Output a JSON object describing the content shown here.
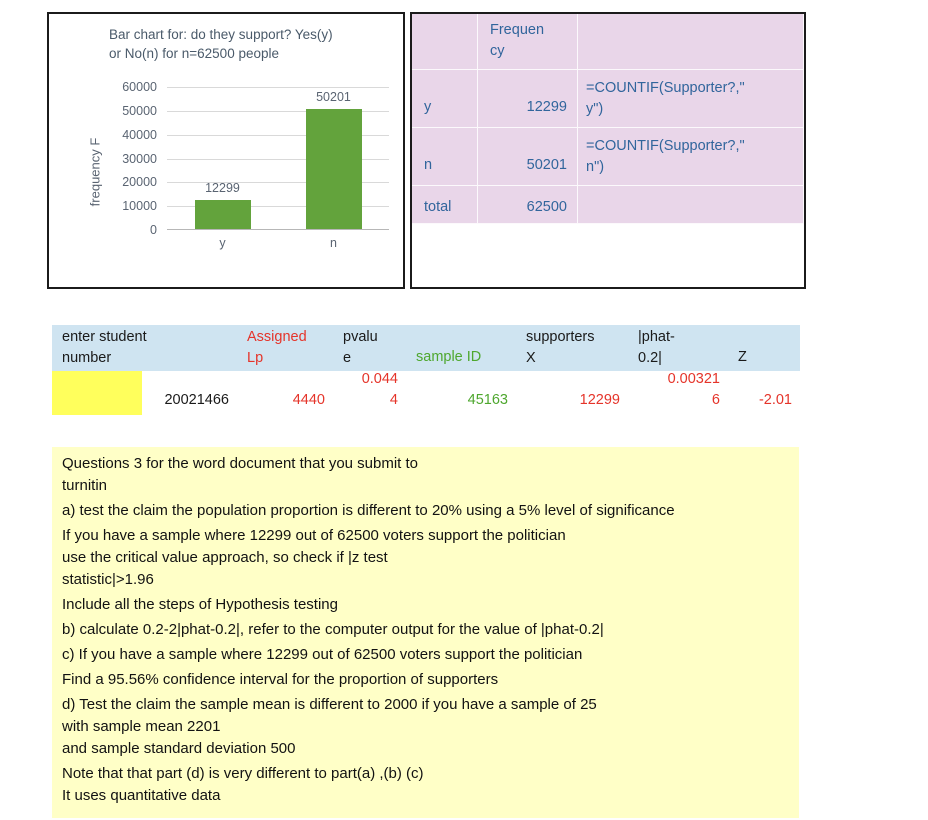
{
  "colors": {
    "bar_green": "#63a33c",
    "pink_table_bg": "#e9d6e9",
    "blue_text": "#31659c",
    "header_blue_bg": "#cfe4f1",
    "input_yellow": "#ffff5c",
    "notes_yellow": "#ffffc7",
    "red_text": "#e5342a",
    "green_text": "#4ea72e"
  },
  "chart_data": {
    "type": "bar",
    "title": "Bar chart for: do they support? Yes(y)\nor No(n) for n=62500  people",
    "categories": [
      "y",
      "n"
    ],
    "values": [
      12299,
      50201
    ],
    "bar_labels": [
      "12299",
      "50201"
    ],
    "xlabel": "",
    "ylabel": "frequency F",
    "ylim": [
      0,
      60000
    ],
    "yticks": [
      0,
      10000,
      20000,
      30000,
      40000,
      50000,
      60000
    ],
    "grid": true,
    "legend": false,
    "bar_color": "#63a33c"
  },
  "freq_table": {
    "header": "Frequen\ncy",
    "rows": [
      {
        "label": "y",
        "value": "12299",
        "formula": "=COUNTIF(Supporter?,\"\ny\")"
      },
      {
        "label": "n",
        "value": "50201",
        "formula": "=COUNTIF(Supporter?,\"\nn\")"
      },
      {
        "label": "total",
        "value": "62500",
        "formula": ""
      }
    ]
  },
  "calc_table": {
    "headers": {
      "student": "enter student\nnumber",
      "assigned_lp": "Assigned\nLp",
      "pvalue": "pvalu\ne",
      "sample_id": "sample ID",
      "supporters": "supporters\nX",
      "phat": "|phat-\n0.2|",
      "z": "Z"
    },
    "row": {
      "student_input": "",
      "student_number": "20021466",
      "assigned_lp": "4440",
      "pvalue": "0.044\n4",
      "sample_id": "45163",
      "supporters": "12299",
      "phat": "0.00321\n6",
      "z": "-2.01"
    }
  },
  "questions": {
    "paragraphs": [
      "Questions 3 for the word document that you submit to\nturnitin",
      "a) test the claim the population proportion is different to  20%   using a 5% level of significance",
      "If you have a sample where 12299 out of 62500 voters support the politician\nuse the critical value approach, so check if  |z test\nstatistic|>1.96",
      "Include all the steps of Hypothesis testing",
      "b) calculate 0.2-2|phat-0.2|, refer to the computer output for the value of |phat-0.2|",
      "c) If you have a sample where 12299 out of 62500 voters support the politician",
      "Find a 95.56% confidence interval for the proportion of supporters",
      "d) Test the claim the sample mean is different to 2000 if you have a sample of 25\nwith sample mean    2201\nand sample standard deviation 500",
      "Note that that part (d) is very different to  part(a) ,(b) (c)\nIt uses quantitative data"
    ]
  }
}
